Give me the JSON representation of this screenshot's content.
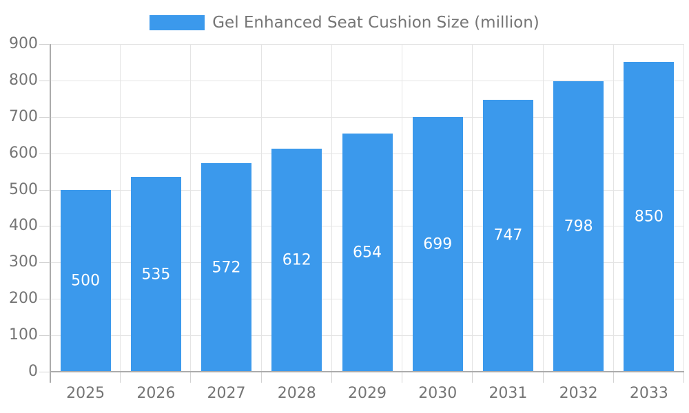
{
  "chart_data": {
    "type": "bar",
    "title": "Gel Enhanced Seat Cushion Size (million)",
    "categories": [
      "2025",
      "2026",
      "2027",
      "2028",
      "2029",
      "2030",
      "2031",
      "2032",
      "2033"
    ],
    "values": [
      500,
      535,
      572,
      612,
      654,
      699,
      747,
      798,
      850
    ],
    "xlabel": "",
    "ylabel": "",
    "ylim": [
      0,
      900
    ],
    "ytick_step": 100,
    "ytick_labels": [
      "0",
      "100",
      "200",
      "300",
      "400",
      "500",
      "600",
      "700",
      "800",
      "900"
    ],
    "grid": true,
    "legend_position": "top-center",
    "value_label_position": "inside-center",
    "colors": {
      "bar": "#3B99EC",
      "value_label": "#FFFFFF",
      "axis_line": "#ABABAB",
      "gridline": "#E4E4E4",
      "tick": "#D2D2D2",
      "label_text": "#757575",
      "background": "#FFFFFF"
    }
  }
}
